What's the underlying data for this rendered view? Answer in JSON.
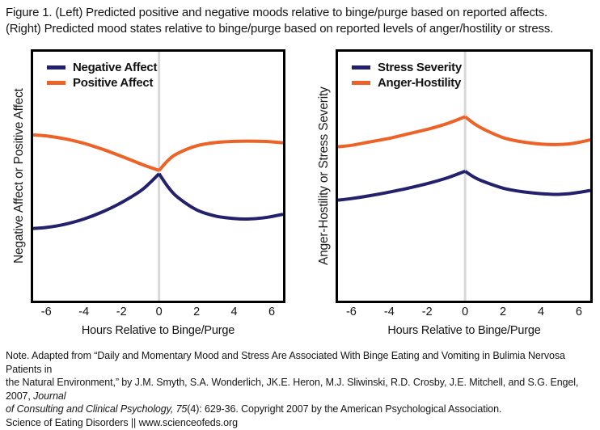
{
  "figure": {
    "caption_line1": "Figure 1. (Left) Predicted positive and negative moods relative to binge/purge based on reported affects.",
    "caption_line2": "(Right) Predicted mood states relative to binge/purge based on reported levels of anger/hostility or stress."
  },
  "chart_data": [
    {
      "type": "line",
      "ylabel": "Negative Affect or Positive Affect",
      "xlabel": "Hours Relative to Binge/Purge",
      "x_ticks": [
        -6,
        -4,
        -2,
        0,
        2,
        4,
        6
      ],
      "x_range": [
        -6.7,
        6.6
      ],
      "ylim": [
        0,
        1
      ],
      "y_units": "arbitrary (no y-axis ticks shown)",
      "grid": false,
      "event_marker_x": 0,
      "event_marker_color": "#d8d8d8",
      "legend_position": "top-left",
      "series": [
        {
          "name": "Negative Affect",
          "color": "#23216b",
          "points": [
            [
              -6.7,
              0.29
            ],
            [
              -6,
              0.294
            ],
            [
              -5,
              0.307
            ],
            [
              -4,
              0.328
            ],
            [
              -3,
              0.357
            ],
            [
              -2,
              0.394
            ],
            [
              -1,
              0.44
            ],
            [
              -0.5,
              0.472
            ],
            [
              0,
              0.51
            ],
            [
              0.5,
              0.455
            ],
            [
              1,
              0.415
            ],
            [
              2,
              0.365
            ],
            [
              3,
              0.34
            ],
            [
              4,
              0.33
            ],
            [
              4.7,
              0.328
            ],
            [
              5.5,
              0.332
            ],
            [
              6,
              0.338
            ],
            [
              6.6,
              0.347
            ]
          ]
        },
        {
          "name": "Positive Affect",
          "color": "#ed6227",
          "points": [
            [
              -6.7,
              0.666
            ],
            [
              -6,
              0.662
            ],
            [
              -5,
              0.65
            ],
            [
              -4,
              0.632
            ],
            [
              -3,
              0.608
            ],
            [
              -2,
              0.58
            ],
            [
              -1,
              0.55
            ],
            [
              -0.5,
              0.536
            ],
            [
              0,
              0.523
            ],
            [
              0.5,
              0.565
            ],
            [
              1,
              0.592
            ],
            [
              2,
              0.622
            ],
            [
              3,
              0.635
            ],
            [
              4,
              0.64
            ],
            [
              4.7,
              0.641
            ],
            [
              5.5,
              0.64
            ],
            [
              6,
              0.638
            ],
            [
              6.6,
              0.634
            ]
          ]
        }
      ]
    },
    {
      "type": "line",
      "ylabel": "Anger-Hostility or Stress Severity",
      "xlabel": "Hours Relative to Binge/Purge",
      "x_ticks": [
        -6,
        -4,
        -2,
        0,
        2,
        4,
        6
      ],
      "x_range": [
        -6.7,
        6.6
      ],
      "ylim": [
        0,
        1
      ],
      "y_units": "arbitrary (no y-axis ticks shown)",
      "grid": false,
      "event_marker_x": 0,
      "event_marker_color": "#d8d8d8",
      "legend_position": "top-left",
      "series": [
        {
          "name": "Stress Severity",
          "color": "#23216b",
          "points": [
            [
              -6.7,
              0.404
            ],
            [
              -6,
              0.41
            ],
            [
              -5,
              0.422
            ],
            [
              -4,
              0.436
            ],
            [
              -3,
              0.452
            ],
            [
              -2,
              0.47
            ],
            [
              -1,
              0.492
            ],
            [
              0,
              0.52
            ],
            [
              0.5,
              0.495
            ],
            [
              1,
              0.478
            ],
            [
              2,
              0.452
            ],
            [
              3,
              0.438
            ],
            [
              4,
              0.43
            ],
            [
              4.8,
              0.427
            ],
            [
              5.5,
              0.43
            ],
            [
              6,
              0.435
            ],
            [
              6.6,
              0.443
            ]
          ]
        },
        {
          "name": "Anger-Hostility",
          "color": "#ed6227",
          "points": [
            [
              -6.7,
              0.618
            ],
            [
              -6,
              0.624
            ],
            [
              -5,
              0.638
            ],
            [
              -4,
              0.652
            ],
            [
              -3,
              0.67
            ],
            [
              -2,
              0.688
            ],
            [
              -1,
              0.71
            ],
            [
              0,
              0.739
            ],
            [
              0.5,
              0.71
            ],
            [
              1,
              0.688
            ],
            [
              2,
              0.655
            ],
            [
              3,
              0.638
            ],
            [
              4,
              0.629
            ],
            [
              4.8,
              0.627
            ],
            [
              5.5,
              0.63
            ],
            [
              6,
              0.636
            ],
            [
              6.6,
              0.646
            ]
          ]
        }
      ]
    }
  ],
  "note": {
    "line1": "Note. Adapted from “Daily and Momentary Mood and Stress Are Associated With Binge Eating and Vomiting in Bulimia Nervosa Patients in",
    "line2_regular": "the Natural Environment,” by J.M. Smyth,  S.A. Wonderlich, JK.E. Heron, M.J. Sliwinski, R.D. Crosby, J.E. Mitchell, and S.G. Engel, 2007, ",
    "line2_italic": "Journal",
    "line3_italic": "of Consulting and Clinical Psychology, 75",
    "line3_regular": "(4): 629-36.  Copyright 2007 by the American Psychological Association.",
    "line4": "Science of Eating Disorders || www.scienceofeds.org"
  }
}
